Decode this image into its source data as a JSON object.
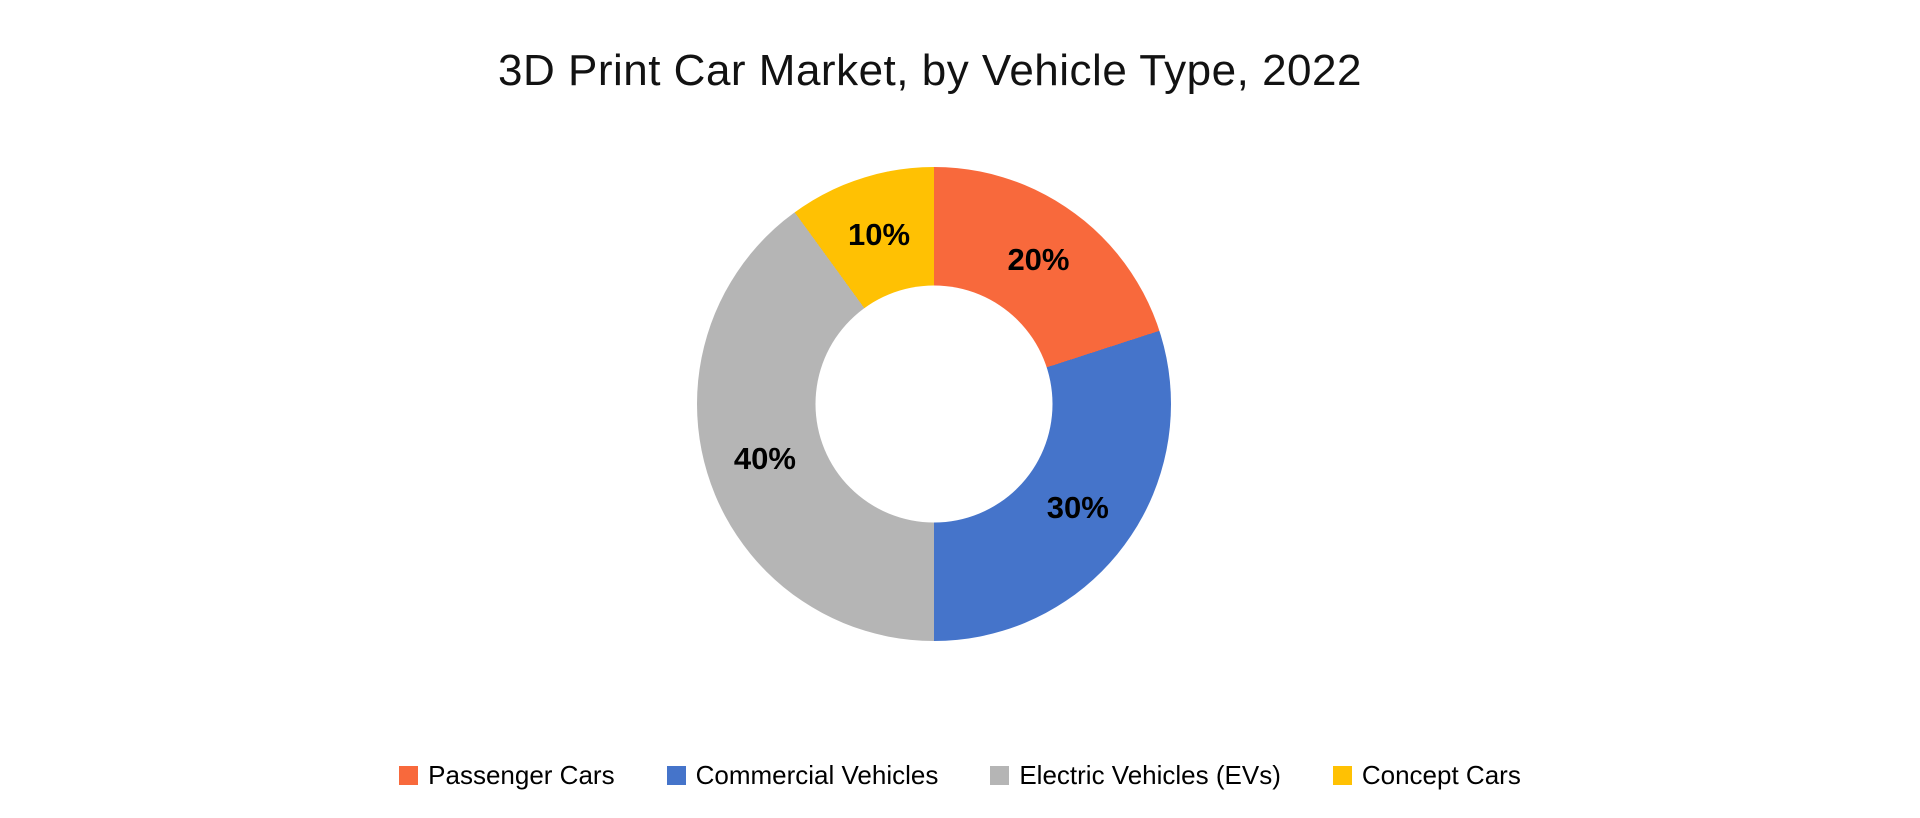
{
  "page": {
    "background": "#ffffff"
  },
  "chart_data": {
    "type": "pie",
    "subtype": "donut",
    "title": "3D Print Car Market, by Vehicle Type, 2022",
    "categories": [
      "Passenger Cars",
      "Commercial Vehicles",
      "Electric Vehicles (EVs)",
      "Concept Cars"
    ],
    "values": [
      20,
      30,
      40,
      10
    ],
    "unit": "%",
    "data_labels": [
      "20%",
      "30%",
      "40%",
      "10%"
    ],
    "colors": [
      "#F8693C",
      "#4574CA",
      "#B5B5B5",
      "#FFC103"
    ],
    "label_color": "#000000",
    "title_color": "#121212",
    "start_angle_deg": 0,
    "direction": "clockwise",
    "inner_radius_ratio": 0.5,
    "legend_position": "bottom",
    "grid": false
  }
}
